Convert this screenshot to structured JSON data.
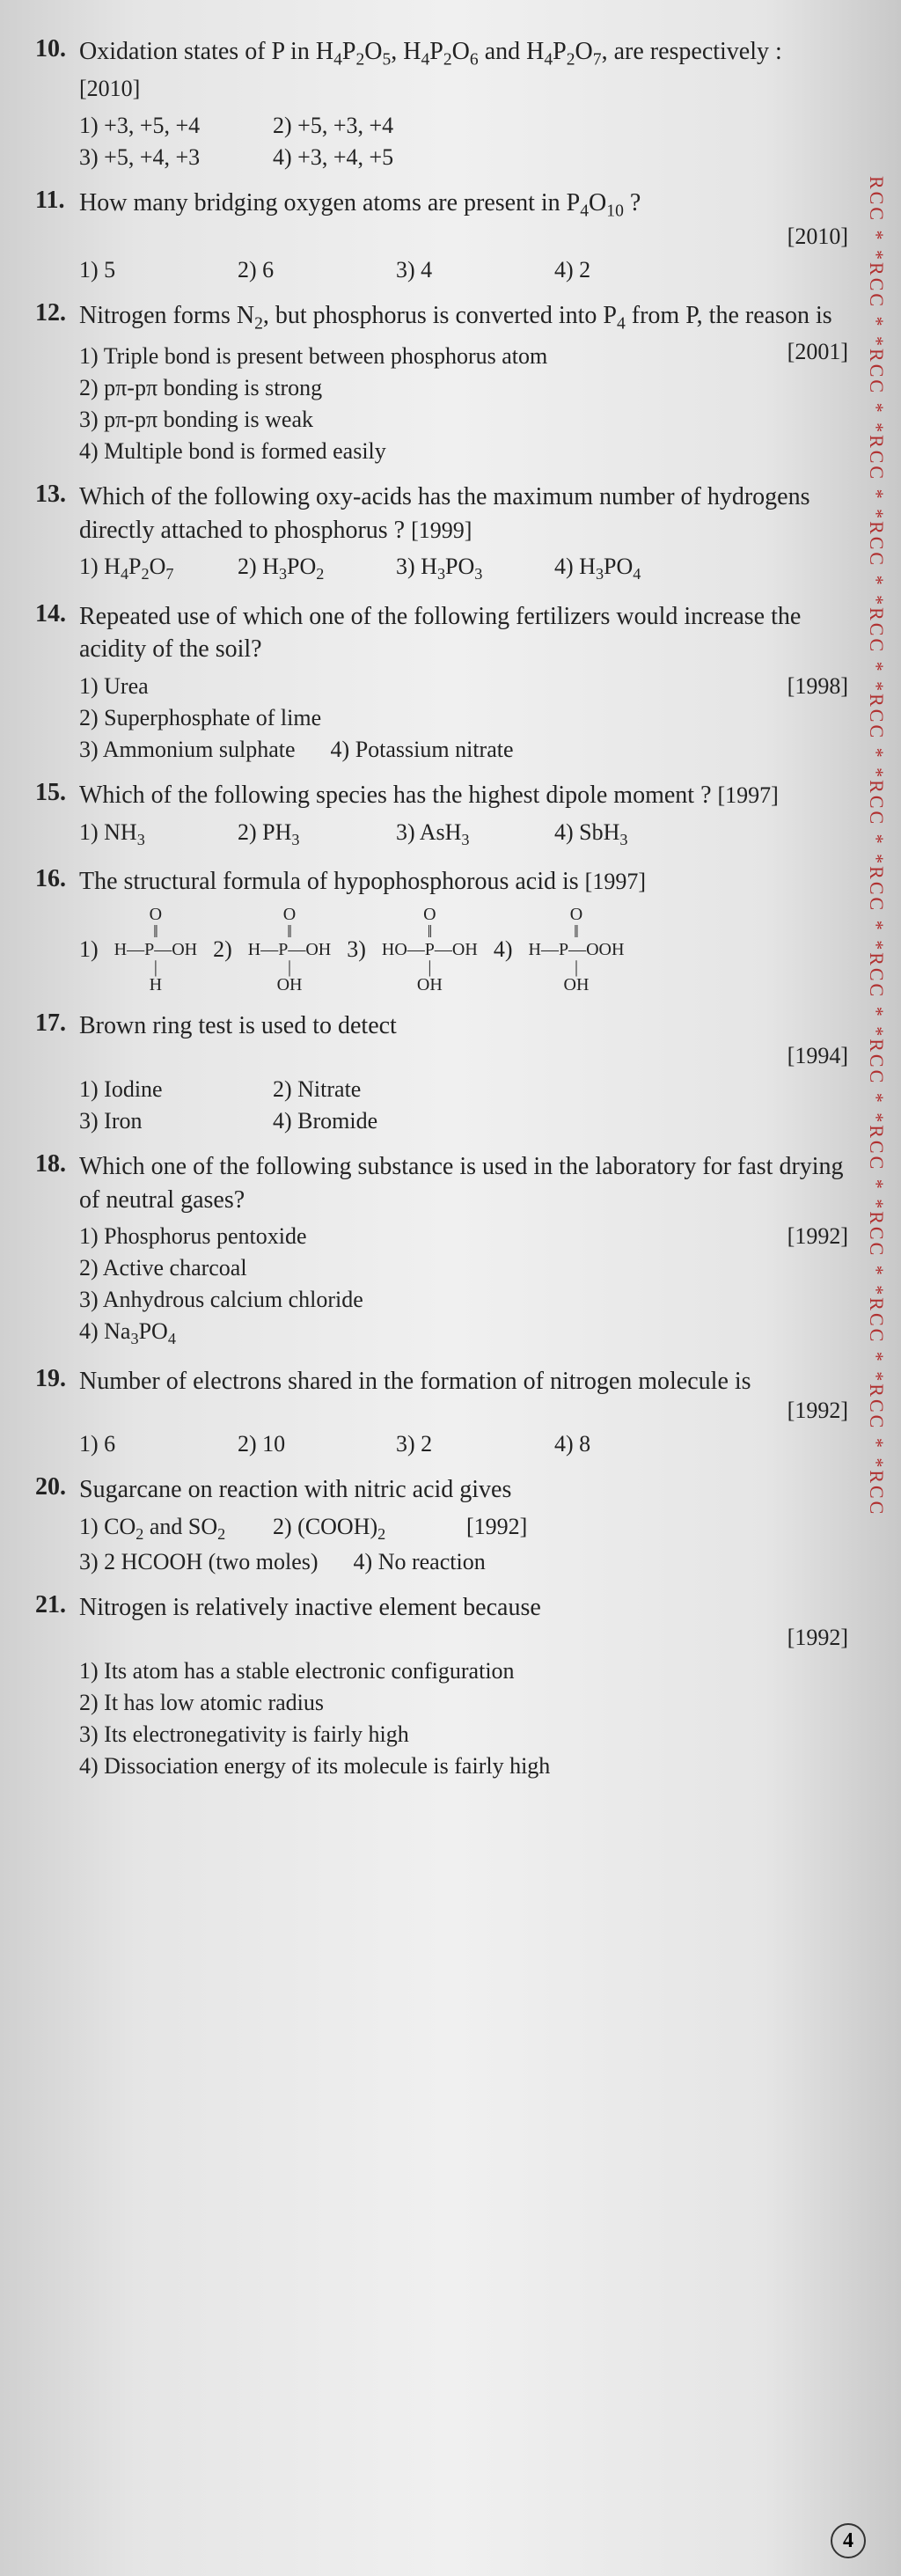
{
  "side_text": "RCC * *RCC * *RCC * *RCC * *RCC * *RCC * *RCC * *RCC * *RCC * *RCC * *RCC * *RCC * *RCC * *RCC * *RCC * *RCC",
  "page_number": "4",
  "questions": [
    {
      "num": "10.",
      "text": "Oxidation states of P in H₄P₂O₅, H₄P₂O₆ and H₄P₂O₇, are respectively :",
      "year": "[2010]",
      "options": [
        {
          "n": "1)",
          "t": "+3, +5, +4"
        },
        {
          "n": "2)",
          "t": "+5, +3, +4"
        },
        {
          "n": "3)",
          "t": "+5, +4, +3"
        },
        {
          "n": "4)",
          "t": "+3, +4, +5"
        }
      ],
      "layout": "2col"
    },
    {
      "num": "11.",
      "text": "How many bridging oxygen atoms are present in P₄O₁₀ ?",
      "year": "[2010]",
      "options": [
        {
          "n": "1)",
          "t": "5"
        },
        {
          "n": "2)",
          "t": "6"
        },
        {
          "n": "3)",
          "t": "4"
        },
        {
          "n": "4)",
          "t": "2"
        }
      ],
      "layout": "4col"
    },
    {
      "num": "12.",
      "text": "Nitrogen forms N₂, but phosphorus is converted into P₄ from P, the reason is",
      "year": "[2001]",
      "options": [
        {
          "n": "1)",
          "t": "Triple bond is present between phosphorus atom"
        },
        {
          "n": "2)",
          "t": "pπ-pπ bonding is strong"
        },
        {
          "n": "3)",
          "t": "pπ-pπ bonding is weak"
        },
        {
          "n": "4)",
          "t": "Multiple bond is formed easily"
        }
      ],
      "layout": "1col"
    },
    {
      "num": "13.",
      "text": "Which of the following oxy-acids has the maximum number of hydrogens directly attached to phosphorus ?",
      "year": "[1999]",
      "options": [
        {
          "n": "1)",
          "t": "H₄P₂O₇"
        },
        {
          "n": "2)",
          "t": "H₃PO₂"
        },
        {
          "n": "3)",
          "t": "H₃PO₃"
        },
        {
          "n": "4)",
          "t": "H₃PO₄"
        }
      ],
      "layout": "4col"
    },
    {
      "num": "14.",
      "text": "Repeated use of which one of the following fertilizers would increase the acidity of the soil?",
      "year": "[1998]",
      "options": [
        {
          "n": "1)",
          "t": "Urea"
        },
        {
          "n": "2)",
          "t": "Superphosphate of lime"
        },
        {
          "n": "3)",
          "t": "Ammonium sulphate"
        },
        {
          "n": "4)",
          "t": "Potassium nitrate"
        }
      ],
      "layout": "mixed34"
    },
    {
      "num": "15.",
      "text": "Which of the following species has the highest dipole moment ?",
      "year": "[1997]",
      "options": [
        {
          "n": "1)",
          "t": "NH₃"
        },
        {
          "n": "2)",
          "t": "PH₃"
        },
        {
          "n": "3)",
          "t": "AsH₃"
        },
        {
          "n": "4)",
          "t": "SbH₃"
        }
      ],
      "layout": "4col"
    },
    {
      "num": "16.",
      "text": "The structural formula of hypophosphorous acid is",
      "year": "[1997]",
      "options": [
        {
          "n": "1)",
          "t": "struct1"
        },
        {
          "n": "2)",
          "t": "struct2"
        },
        {
          "n": "3)",
          "t": "struct3"
        },
        {
          "n": "4)",
          "t": "struct4"
        }
      ],
      "layout": "struct"
    },
    {
      "num": "17.",
      "text": "Brown ring test is used to detect",
      "year": "[1994]",
      "options": [
        {
          "n": "1)",
          "t": "Iodine"
        },
        {
          "n": "2)",
          "t": "Nitrate"
        },
        {
          "n": "3)",
          "t": "Iron"
        },
        {
          "n": "4)",
          "t": "Bromide"
        }
      ],
      "layout": "2col"
    },
    {
      "num": "18.",
      "text": "Which one of the following substance is used in the laboratory for fast drying of neutral gases?",
      "year": "[1992]",
      "options": [
        {
          "n": "1)",
          "t": "Phosphorus pentoxide"
        },
        {
          "n": "2)",
          "t": "Active charcoal"
        },
        {
          "n": "3)",
          "t": "Anhydrous calcium chloride"
        },
        {
          "n": "4)",
          "t": "Na₃PO₄"
        }
      ],
      "layout": "1col"
    },
    {
      "num": "19.",
      "text": "Number of electrons shared in the formation of nitrogen molecule is",
      "year": "[1992]",
      "options": [
        {
          "n": "1)",
          "t": "6"
        },
        {
          "n": "2)",
          "t": "10"
        },
        {
          "n": "3)",
          "t": "2"
        },
        {
          "n": "4)",
          "t": "8"
        }
      ],
      "layout": "4col"
    },
    {
      "num": "20.",
      "text": "Sugarcane on reaction with nitric acid gives",
      "year": "[1992]",
      "options": [
        {
          "n": "1)",
          "t": "CO₂ and SO₂"
        },
        {
          "n": "2)",
          "t": "(COOH)₂"
        },
        {
          "n": "3)",
          "t": "2 HCOOH (two moles)"
        },
        {
          "n": "4)",
          "t": "No reaction"
        }
      ],
      "layout": "2col"
    },
    {
      "num": "21.",
      "text": "Nitrogen is relatively inactive element because",
      "year": "[1992]",
      "options": [
        {
          "n": "1)",
          "t": "Its atom has a stable electronic configuration"
        },
        {
          "n": "2)",
          "t": "It has low atomic radius"
        },
        {
          "n": "3)",
          "t": "Its electronegativity is fairly high"
        },
        {
          "n": "4)",
          "t": "Dissociation energy of its molecule is fairly high"
        }
      ],
      "layout": "1col"
    }
  ],
  "structures": {
    "s1": {
      "top": "O",
      "mid": "H—P—OH",
      "bot": "H"
    },
    "s2": {
      "top": "O",
      "mid": "H—P—OH",
      "bot": "OH"
    },
    "s3": {
      "top": "O",
      "mid": "HO—P—OH",
      "bot": "OH"
    },
    "s4": {
      "top": "O",
      "mid": "H—P—OOH",
      "bot": "OH"
    }
  }
}
